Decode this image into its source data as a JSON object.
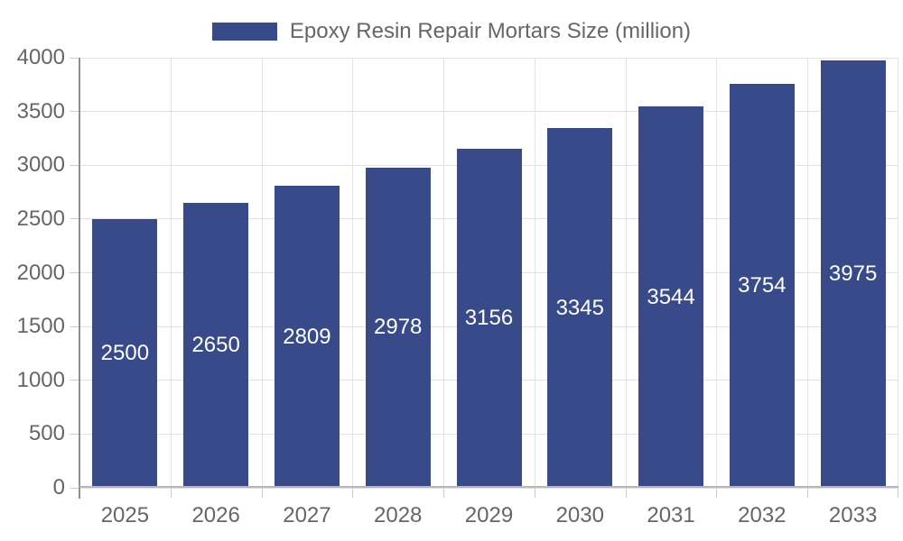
{
  "chart_data": {
    "type": "bar",
    "title": "Epoxy Resin Repair Mortars Size (million)",
    "categories": [
      "2025",
      "2026",
      "2027",
      "2028",
      "2029",
      "2030",
      "2031",
      "2032",
      "2033"
    ],
    "values": [
      2500,
      2650,
      2809,
      2978,
      3156,
      3345,
      3544,
      3754,
      3975
    ],
    "series": [
      {
        "name": "Epoxy Resin Repair Mortars Size (million)",
        "values": [
          2500,
          2650,
          2809,
          2978,
          3156,
          3345,
          3544,
          3754,
          3975
        ]
      }
    ],
    "xlabel": "",
    "ylabel": "",
    "ylim": [
      0,
      4000
    ],
    "yticks": [
      0,
      500,
      1000,
      1500,
      2000,
      2500,
      3000,
      3500,
      4000
    ],
    "grid": true,
    "legend_position": "top",
    "colors": {
      "bar": "#384A8A",
      "bar_label": "#FFFFFF",
      "axis_text": "#666666",
      "gridline": "#E3E3E3",
      "tick": "#CCCCCC",
      "axis_line_y": "#8F8F8F",
      "axis_line_x": "#B6B6B6",
      "background": "#FFFFFF"
    }
  }
}
